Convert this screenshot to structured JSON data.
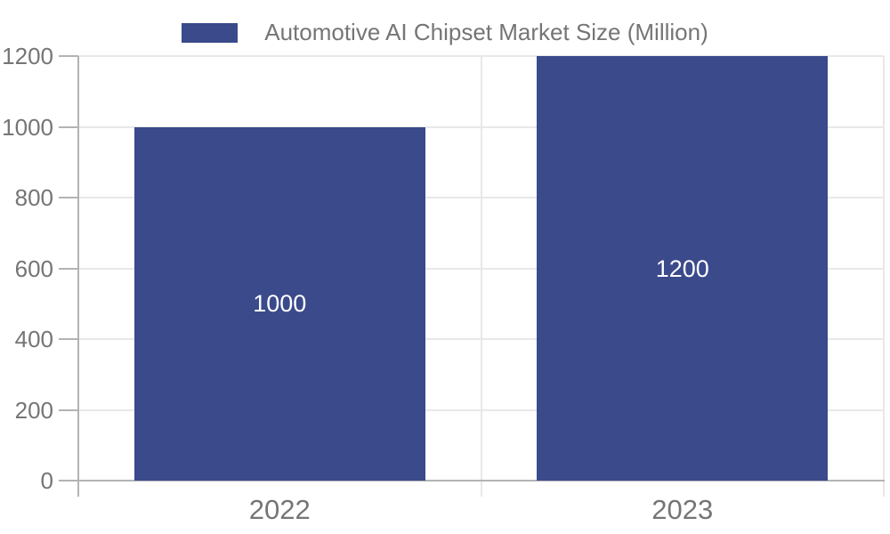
{
  "chart_data": {
    "type": "bar",
    "title": "",
    "categories": [
      "2022",
      "2023"
    ],
    "values": [
      1000,
      1200
    ],
    "bar_value_labels": [
      "1000",
      "1200"
    ],
    "series": [
      {
        "name": "Automotive AI Chipset Market Size (Million)",
        "values": [
          1000,
          1200
        ]
      }
    ],
    "xlabel": "",
    "ylabel": "",
    "ylim": [
      0,
      1200
    ],
    "yticks": [
      0,
      200,
      400,
      600,
      800,
      1000,
      1200
    ],
    "ytick_labels": [
      "0",
      "200",
      "400",
      "600",
      "800",
      "1000",
      "1200"
    ],
    "grid": true,
    "legend": {
      "position": "top-center",
      "entries": [
        "Automotive AI Chipset Market Size (Million)"
      ]
    },
    "colors": {
      "bar": "#3A4A8B",
      "grid": "#e8e8e8",
      "axis": "#b3b3b3",
      "tick_label": "#757575",
      "value_label": "#ffffff",
      "background": "#ffffff"
    }
  }
}
